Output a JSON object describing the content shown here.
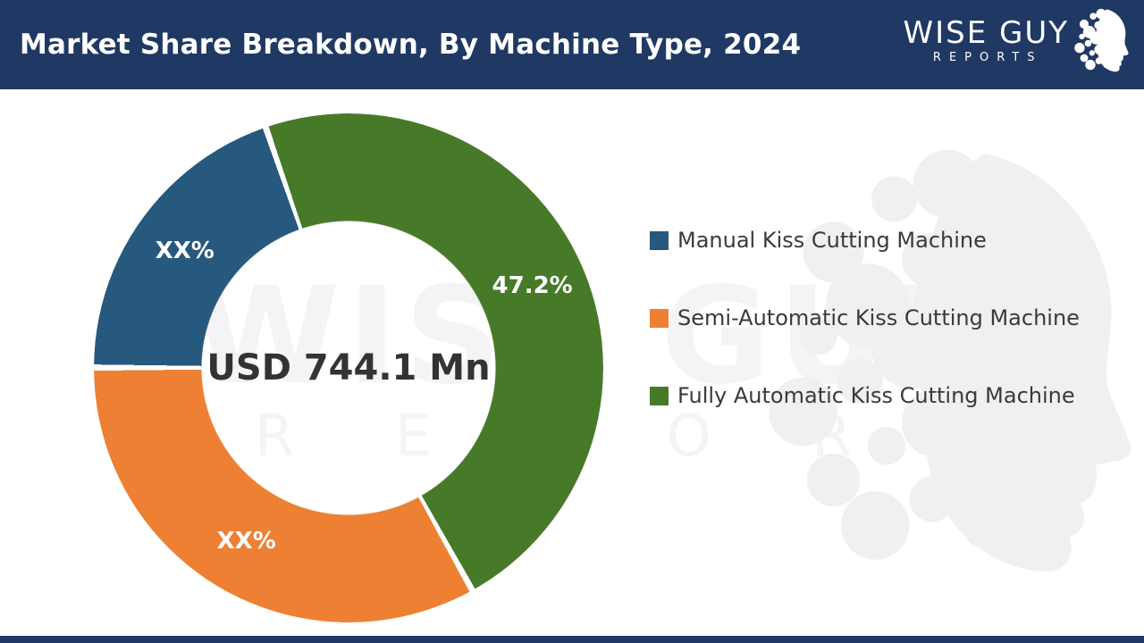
{
  "header": {
    "title": "Market Share Breakdown, By Machine Type, 2024",
    "logo": {
      "line1": "WISE GUY",
      "line2": "REPORTS"
    }
  },
  "watermark": {
    "line1": "WISE GUY",
    "line2": "R E P O R T S"
  },
  "chart_data": {
    "type": "donut",
    "title": "Market Share Breakdown, By Machine Type, 2024",
    "center_label": "USD 744.1 Mn",
    "start_angle_deg": -19,
    "gap_deg": 1.4,
    "label_radius_ratio": 0.79,
    "slices": [
      {
        "name": "Fully Automatic Kiss Cutting Machine",
        "value": 47.2,
        "display_label": "47.2%",
        "color": "#477a28"
      },
      {
        "name": "Semi-Automatic Kiss Cutting Machine",
        "value": 33.1,
        "display_label": "XX%",
        "color": "#ee8033"
      },
      {
        "name": "Manual Kiss Cutting Machine",
        "value": 19.7,
        "display_label": "XX%",
        "color": "#27587d"
      }
    ],
    "legend_position": "right",
    "legend": [
      {
        "label": "Manual Kiss Cutting Machine",
        "color": "#27587d"
      },
      {
        "label": "Semi-Automatic Kiss Cutting Machine",
        "color": "#ee8033"
      },
      {
        "label": "Fully Automatic Kiss Cutting Machine",
        "color": "#477a28"
      }
    ]
  },
  "colors": {
    "header_bg": "#203864",
    "slice_gap": "#ffffff",
    "center_text": "#333333",
    "legend_text": "#3a3a3a",
    "watermark": "#f4f4f6"
  }
}
